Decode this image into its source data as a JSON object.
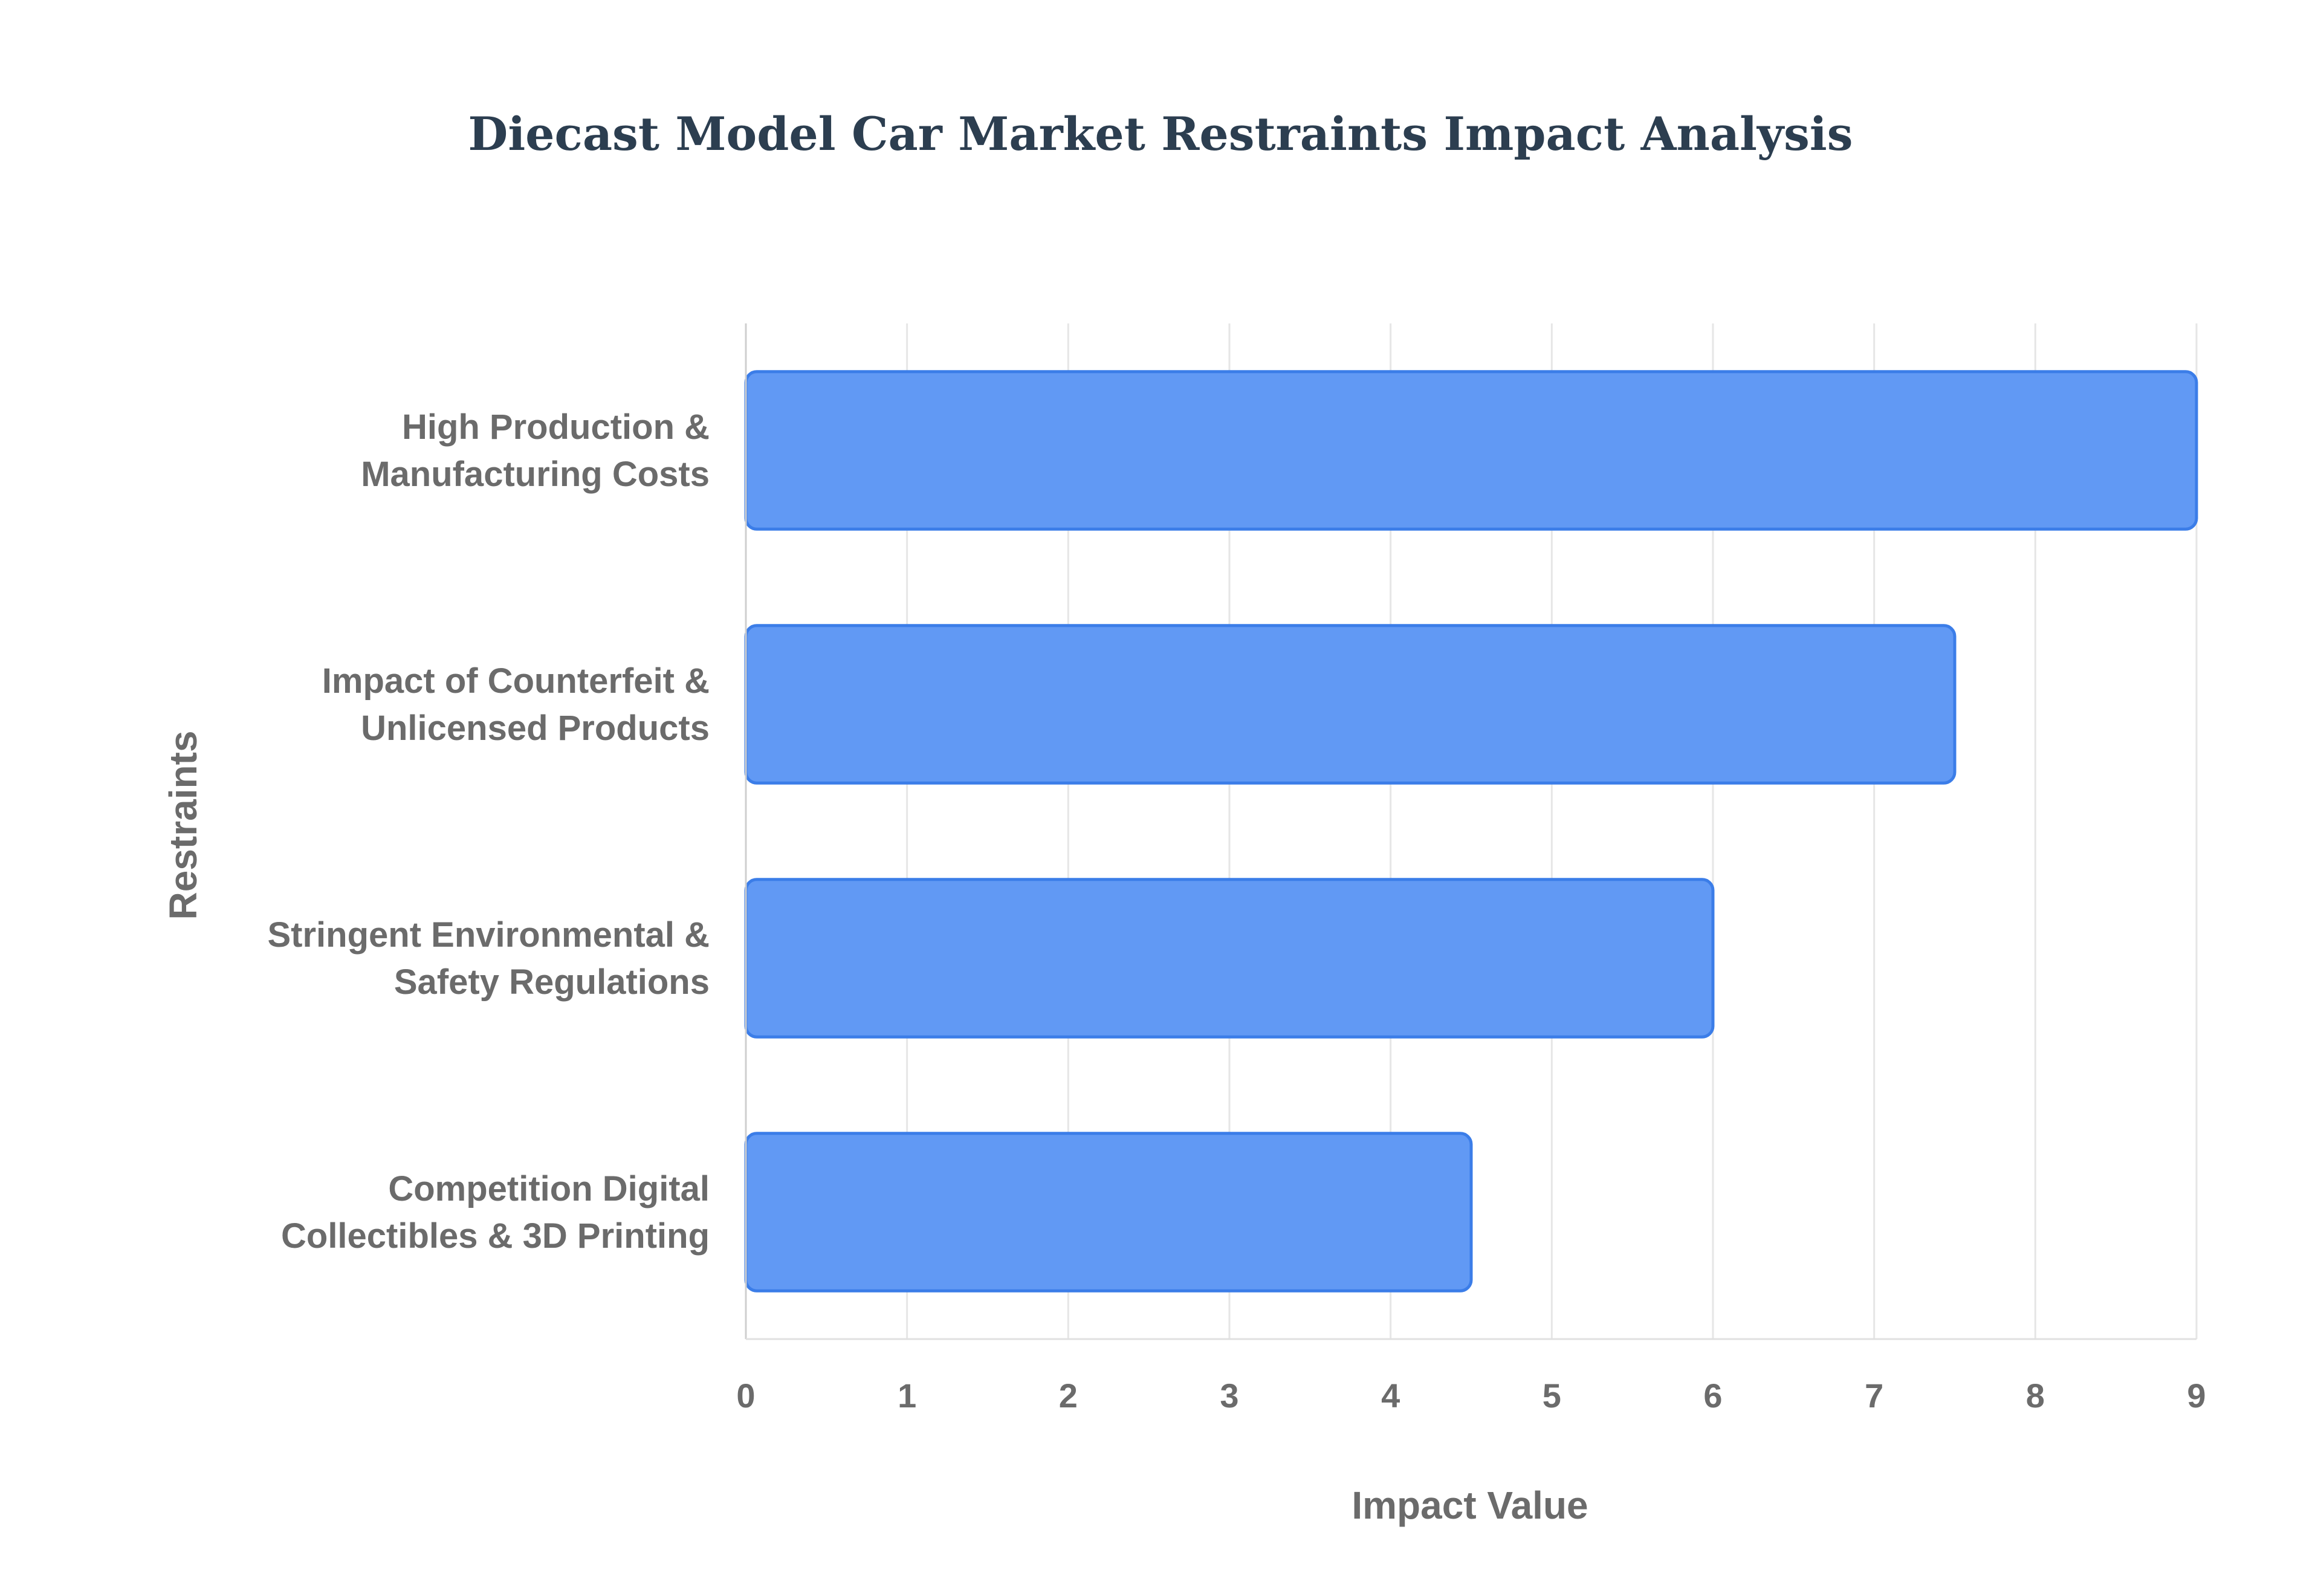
{
  "chart_data": {
    "type": "bar",
    "orientation": "horizontal",
    "title": "Diecast Model Car Market Restraints Impact Analysis",
    "xlabel": "Impact Value",
    "ylabel": "Restraints",
    "categories": [
      [
        "High Production &",
        "Manufacturing Costs"
      ],
      [
        "Impact of Counterfeit &",
        "Unlicensed Products"
      ],
      [
        "Stringent Environmental &",
        "Safety Regulations"
      ],
      [
        "Competition Digital",
        "Collectibles & 3D Printing"
      ]
    ],
    "values": [
      9,
      7.5,
      6,
      4.5
    ],
    "xlim": [
      0,
      9
    ],
    "xticks": [
      "0",
      "1",
      "2",
      "3",
      "4",
      "5",
      "6",
      "7",
      "8",
      "9"
    ],
    "grid": true,
    "colors": {
      "bar_fill": "#6199f4",
      "bar_stroke": "#3b7de8",
      "title": "#2c3e50",
      "grid": "#e6e6e6"
    }
  }
}
